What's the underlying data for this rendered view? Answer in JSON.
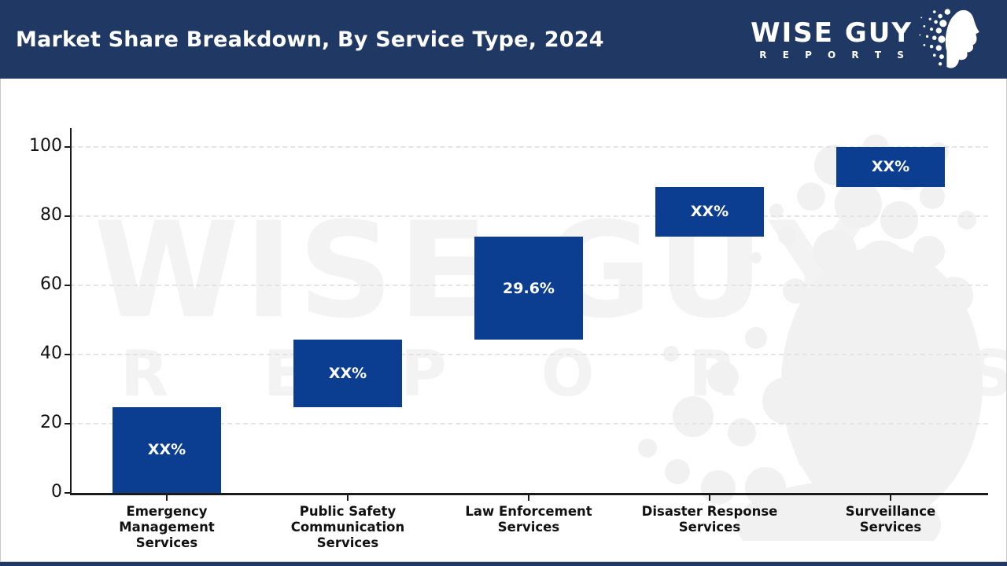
{
  "header": {
    "title": "Market Share Breakdown, By Service Type, 2024",
    "logo_line1": "WISE GUY",
    "logo_line2": "R E P O R T S"
  },
  "watermark": {
    "line1": "WISE GUY",
    "line2": "R E P O R T S"
  },
  "colors": {
    "header_navy": "#1f3864",
    "bar_blue": "#0b3d91",
    "grid_gray": "#e4e4e4",
    "axis_black": "#1a1a1a",
    "watermark_gray": "#f1f1f1"
  },
  "chart_data": {
    "type": "bar",
    "subtype": "waterfall",
    "title": "Market Share Breakdown, By Service Type, 2024",
    "xlabel": "",
    "ylabel": "",
    "ylim": [
      0,
      105
    ],
    "yticks": [
      0,
      20,
      40,
      60,
      80,
      100
    ],
    "grid": "horizontal-dashed",
    "legend": "none",
    "categories": [
      "Emergency\nManagement\nServices",
      "Public Safety\nCommunication\nServices",
      "Law Enforcement\nServices",
      "Disaster Response\nServices",
      "Surveillance\nServices"
    ],
    "segments": [
      {
        "category": "Emergency Management Services",
        "label": "XX%",
        "start": 0,
        "end": 24.8
      },
      {
        "category": "Public Safety Communication Services",
        "label": "XX%",
        "start": 24.8,
        "end": 44.4
      },
      {
        "category": "Law Enforcement Services",
        "label": "29.6%",
        "start": 44.4,
        "end": 74.0
      },
      {
        "category": "Disaster Response Services",
        "label": "XX%",
        "start": 74.0,
        "end": 88.5
      },
      {
        "category": "Surveillance Services",
        "label": "XX%",
        "start": 88.5,
        "end": 100
      }
    ],
    "bar_color": "#0b3d91",
    "label_color": "#ffffff"
  }
}
